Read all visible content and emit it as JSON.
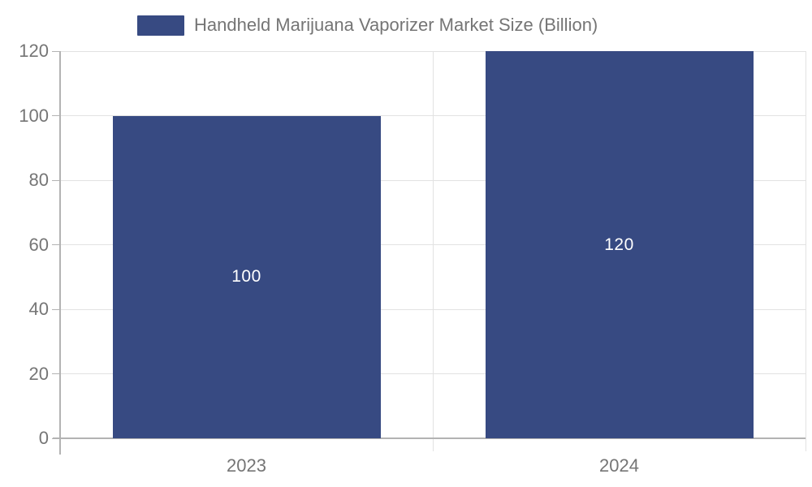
{
  "legend": {
    "label": "Handheld Marijuana Vaporizer Market Size (Billion)"
  },
  "chart_data": {
    "type": "bar",
    "title": "Handheld Marijuana Vaporizer Market Size (Billion)",
    "categories": [
      "2023",
      "2024"
    ],
    "values": [
      100,
      120
    ],
    "series": [
      {
        "name": "Handheld Marijuana Vaporizer Market Size (Billion)",
        "values": [
          100,
          120
        ]
      }
    ],
    "data_labels": [
      "100",
      "120"
    ],
    "xlabel": "",
    "ylabel": "",
    "ylim": [
      0,
      120
    ],
    "yticks": [
      0,
      20,
      40,
      60,
      80,
      100,
      120
    ],
    "grid": true,
    "legend_position": "top",
    "colors": {
      "bar": "#374a82",
      "bar_label_text": "#ffffff",
      "axis_text": "#757575",
      "gridline": "#e2e2e2",
      "axis_line": "#b3b3b3",
      "legend_text": "#757575"
    }
  }
}
